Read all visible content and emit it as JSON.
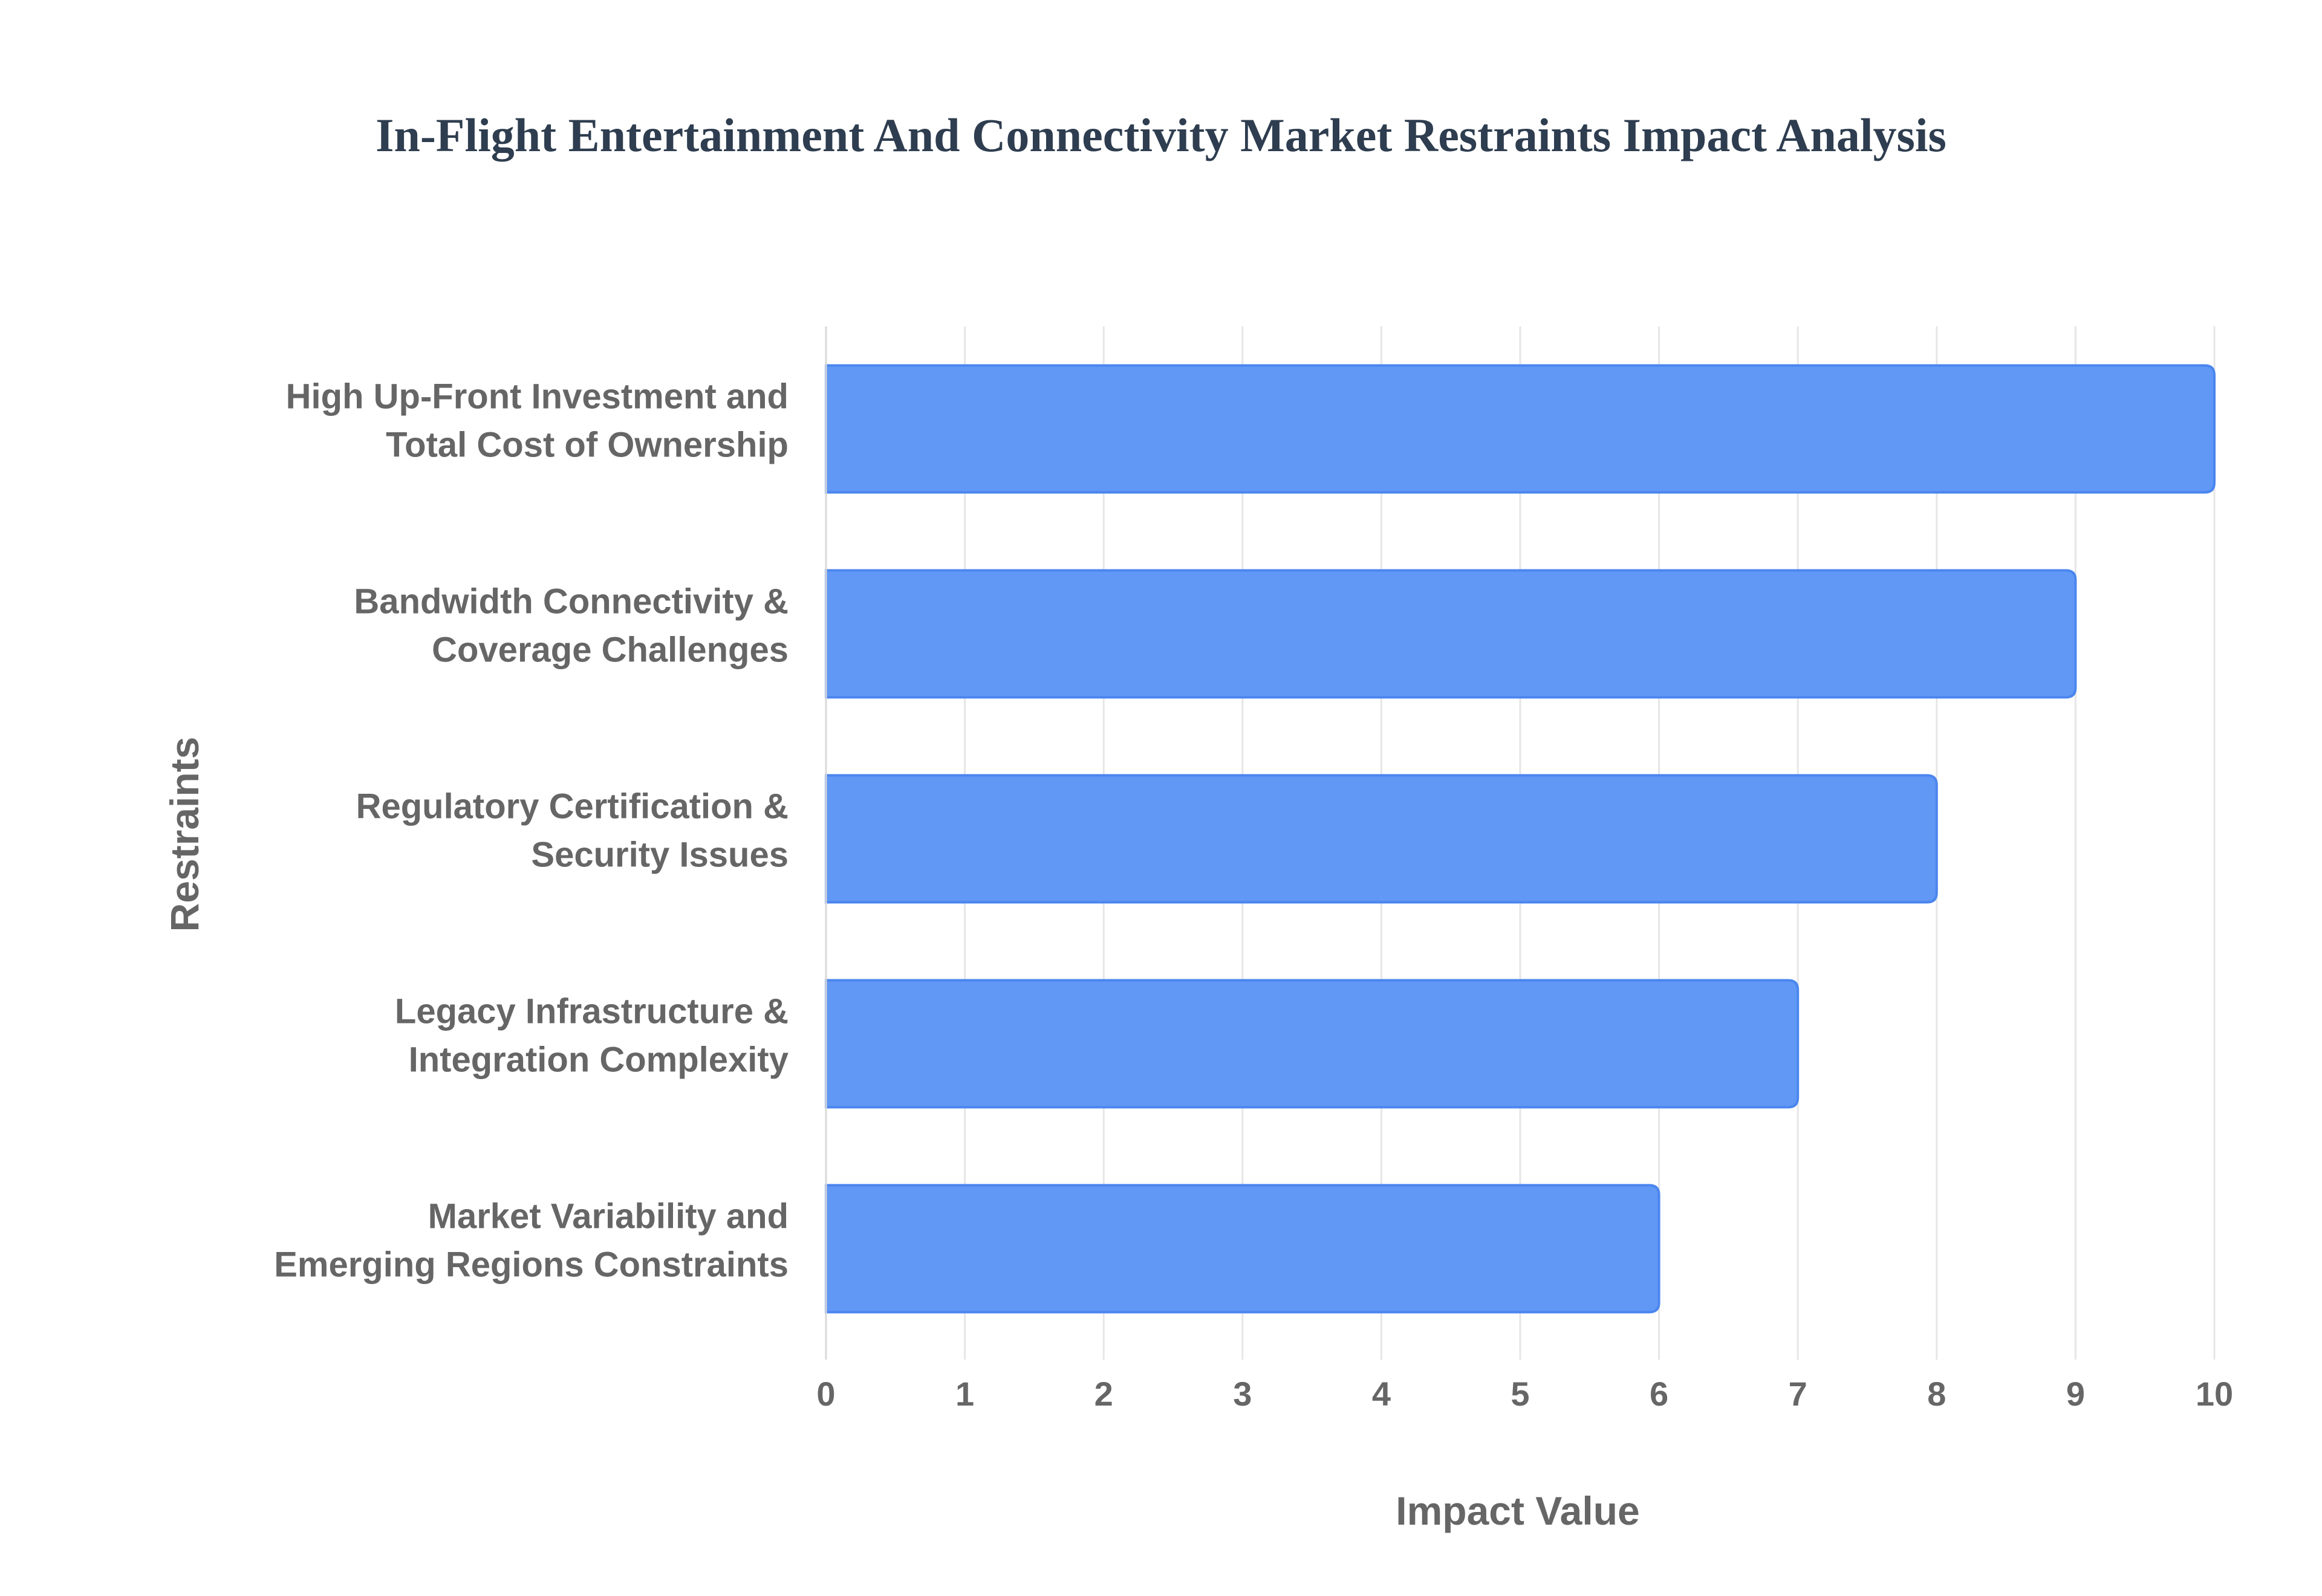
{
  "chart_data": {
    "type": "bar",
    "orientation": "horizontal",
    "title": "In-Flight Entertainment And Connectivity Market Restraints Impact Analysis",
    "xlabel": "Impact Value",
    "ylabel": "Restraints",
    "categories": [
      [
        "High Up-Front Investment and",
        "Total Cost of Ownership"
      ],
      [
        "Bandwidth Connectivity &",
        "Coverage Challenges"
      ],
      [
        "Regulatory Certification &",
        "Security Issues"
      ],
      [
        "Legacy Infrastructure &",
        "Integration Complexity"
      ],
      [
        "Market Variability and",
        "Emerging Regions Constraints"
      ]
    ],
    "values": [
      10,
      9,
      8,
      7,
      6
    ],
    "xlim": [
      0,
      10
    ],
    "xticks": [
      "0",
      "1",
      "2",
      "3",
      "4",
      "5",
      "6",
      "7",
      "8",
      "9",
      "10"
    ],
    "grid": true,
    "bar_color": "#6198f5",
    "bar_edge_color": "#4b86ef"
  }
}
